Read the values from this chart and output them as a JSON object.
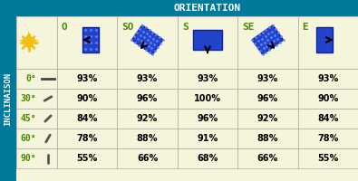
{
  "title": "ORIENTATION",
  "orientation_labels": [
    "O",
    "SO",
    "S",
    "SE",
    "E"
  ],
  "inclination_label": "INCLINAISON",
  "row_labels": [
    "0°",
    "30°",
    "45°",
    "60°",
    "90°"
  ],
  "data": [
    [
      "93%",
      "93%",
      "93%",
      "93%",
      "93%"
    ],
    [
      "90%",
      "96%",
      "100%",
      "96%",
      "90%"
    ],
    [
      "84%",
      "92%",
      "96%",
      "92%",
      "84%"
    ],
    [
      "78%",
      "88%",
      "91%",
      "88%",
      "78%"
    ],
    [
      "55%",
      "66%",
      "68%",
      "66%",
      "55%"
    ]
  ],
  "bg_light": "#f5f5dc",
  "bg_header": "#007a9a",
  "header_text_color": "#ffffff",
  "orientation_text_color": "#4a8a00",
  "row_label_color": "#4a8a00",
  "cell_text_color": "#000000",
  "grid_color": "#aaaaaa",
  "panel_color": "#2244cc",
  "panel_dot_color": "#4466ff",
  "sun_color": "#f0c010",
  "sidebar_color": "#007a9a",
  "data_font_size": 7,
  "header_font_size": 7,
  "title_font_size": 8
}
